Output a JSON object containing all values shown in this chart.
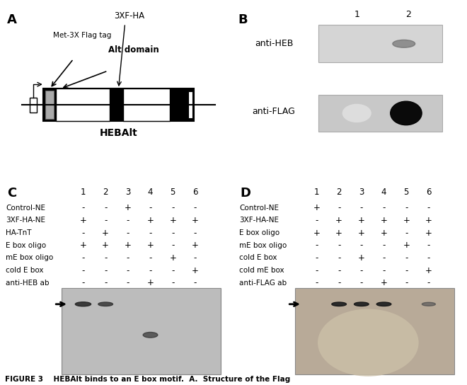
{
  "panel_A": {
    "label": "A",
    "title_3xfha": "3XF-HA",
    "label_met": "Met-3X Flag tag",
    "label_alt": "Alt domain",
    "label_hebalt": "HEBAlt"
  },
  "panel_B": {
    "label": "B",
    "col_labels": [
      "1",
      "2"
    ],
    "row_labels": [
      "anti-HEB",
      "anti-FLAG"
    ]
  },
  "panel_C": {
    "label": "C",
    "col_labels": [
      "1",
      "2",
      "3",
      "4",
      "5",
      "6"
    ],
    "row_labels": [
      "Control-NE",
      "3XF-HA-NE",
      "HA-TnT",
      "E box oligo",
      "mE box oligo",
      "cold E box",
      "anti-HEB ab"
    ],
    "data": [
      [
        "-",
        "-",
        "+",
        "-",
        "-",
        "-"
      ],
      [
        "+",
        "-",
        "-",
        "+",
        "+",
        "+"
      ],
      [
        "-",
        "+",
        "-",
        "-",
        "-",
        "-"
      ],
      [
        "+",
        "+",
        "+",
        "+",
        "-",
        "+"
      ],
      [
        "-",
        "-",
        "-",
        "-",
        "+",
        "-"
      ],
      [
        "-",
        "-",
        "-",
        "-",
        "-",
        "+"
      ],
      [
        "-",
        "-",
        "-",
        "+",
        "-",
        "-"
      ]
    ]
  },
  "panel_D": {
    "label": "D",
    "col_labels": [
      "1",
      "2",
      "3",
      "4",
      "5",
      "6"
    ],
    "row_labels": [
      "Control-NE",
      "3XF-HA-NE",
      "E box oligo",
      "mE box oligo",
      "cold E box",
      "cold mE box",
      "anti-FLAG ab"
    ],
    "data": [
      [
        "+",
        "-",
        "-",
        "-",
        "-",
        "-"
      ],
      [
        "-",
        "+",
        "+",
        "+",
        "+",
        "+"
      ],
      [
        "+",
        "+",
        "+",
        "+",
        "-",
        "+"
      ],
      [
        "-",
        "-",
        "-",
        "-",
        "+",
        "-"
      ],
      [
        "-",
        "-",
        "+",
        "-",
        "-",
        "-"
      ],
      [
        "-",
        "-",
        "-",
        "-",
        "-",
        "+"
      ],
      [
        "-",
        "-",
        "-",
        "+",
        "-",
        "-"
      ]
    ]
  },
  "figure_caption": "FIGURE 3    HEBAlt binds to an E box motif.  A.  Structure of the Flag"
}
